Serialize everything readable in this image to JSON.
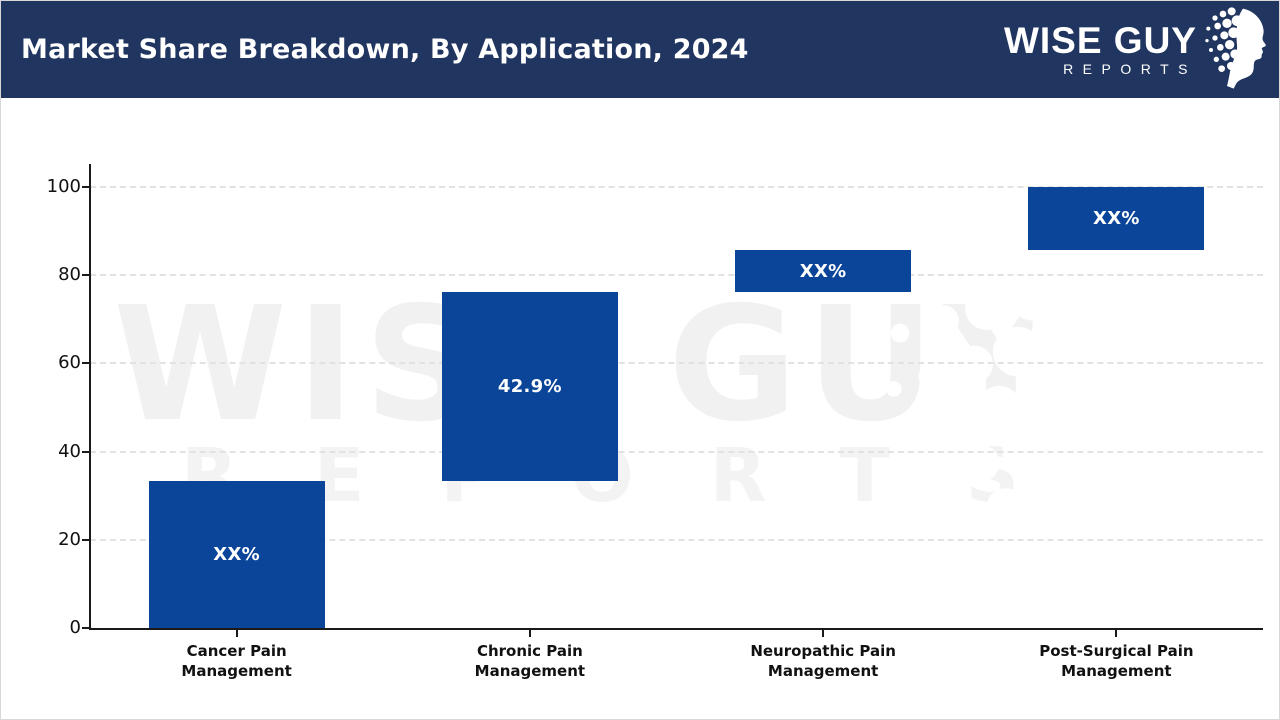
{
  "header": {
    "title": "Market Share Breakdown, By Application, 2024",
    "logo": {
      "line1": "WISE GUY",
      "line2": "REPORTS"
    }
  },
  "watermark": {
    "line1": "WISE GUY",
    "line2": "REPORTS"
  },
  "chart_data": {
    "type": "bar",
    "variant": "waterfall-stacked-market-share",
    "title": "Market Share Breakdown, By Application, 2024",
    "xlabel": "",
    "ylabel": "",
    "ylim": [
      0,
      105
    ],
    "yticks": [
      0,
      20,
      40,
      60,
      80,
      100
    ],
    "grid": "horizontal-dashed",
    "legend": "none",
    "bar_color": "#0b4599",
    "bar_label_color": "#ffffff",
    "categories": [
      [
        "Cancer Pain",
        "Management"
      ],
      [
        "Chronic Pain",
        "Management"
      ],
      [
        "Neuropathic Pain",
        "Management"
      ],
      [
        "Post-Surgical Pain",
        "Management"
      ]
    ],
    "segments": [
      {
        "category": "Cancer Pain Management",
        "start": 0,
        "end": 33.3,
        "value_label": "XX%",
        "estimated_value": 33.3
      },
      {
        "category": "Chronic Pain Management",
        "start": 33.3,
        "end": 76.2,
        "value_label": "42.9%",
        "estimated_value": 42.9
      },
      {
        "category": "Neuropathic Pain Management",
        "start": 76.2,
        "end": 85.7,
        "value_label": "XX%",
        "estimated_value": 9.5
      },
      {
        "category": "Post-Surgical Pain Management",
        "start": 85.7,
        "end": 100,
        "value_label": "XX%",
        "estimated_value": 14.3
      }
    ]
  }
}
